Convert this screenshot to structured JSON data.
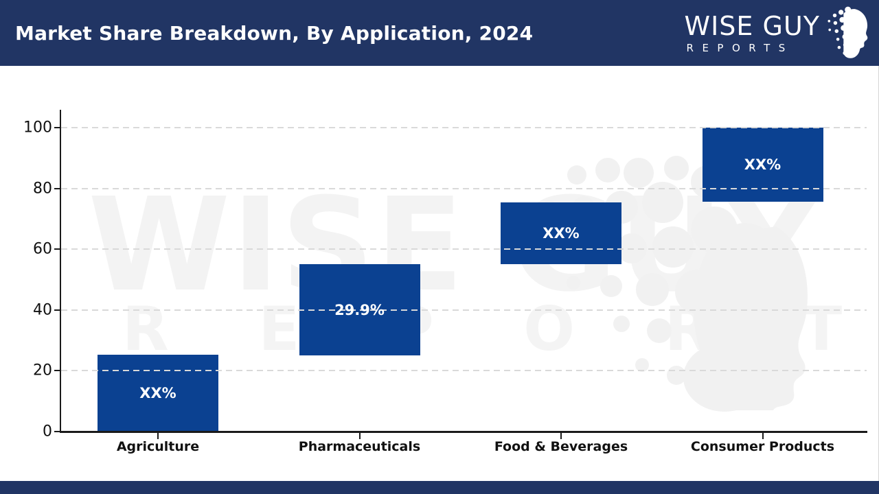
{
  "header": {
    "title": "Market Share Breakdown, By Application, 2024",
    "brand": {
      "line1": "WISE GUY",
      "line2": "REPORTS"
    }
  },
  "watermark": {
    "line1": "WISE GUY",
    "line2": "R E P O R T S"
  },
  "colors": {
    "header_bg": "#213564",
    "footer_bg": "#213564",
    "bar": "#0b4191",
    "gridline": "#d9d9d9",
    "axis": "#1a1a1a",
    "watermark": "#f3f3f3"
  },
  "chart_data": {
    "type": "bar",
    "subtype": "waterfall",
    "title": "Market Share Breakdown, By Application, 2024",
    "xlabel": "",
    "ylabel": "",
    "categories": [
      "Agriculture",
      "Pharmaceuticals",
      "Food & Beverages",
      "Consumer Products"
    ],
    "segments": [
      {
        "category": "Agriculture",
        "start": 0,
        "end": 25.2,
        "label": "XX%"
      },
      {
        "category": "Pharmaceuticals",
        "start": 25.1,
        "end": 55.0,
        "label": "29.9%"
      },
      {
        "category": "Food & Beverages",
        "start": 55.1,
        "end": 75.5,
        "label": "XX%"
      },
      {
        "category": "Consumer Products",
        "start": 75.7,
        "end": 100,
        "label": "XX%"
      }
    ],
    "yticks": [
      0,
      20,
      40,
      60,
      80,
      100
    ],
    "ylim": [
      0,
      106
    ],
    "grid": "horizontal-dashed-above-bars",
    "legend": "none",
    "bar_value_labels": "centered-inside-white-bold"
  }
}
